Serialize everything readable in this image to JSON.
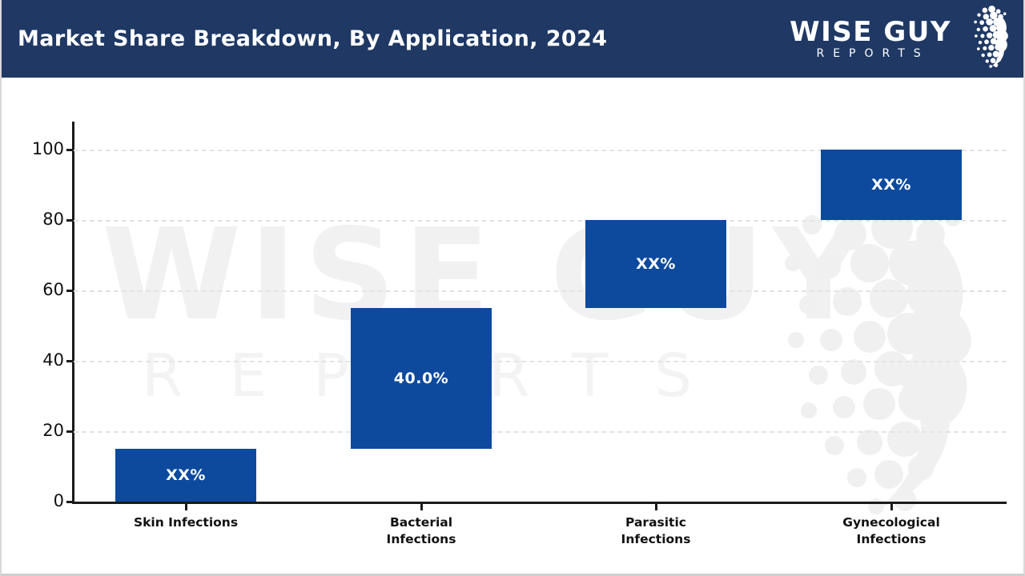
{
  "header": {
    "title": "Market Share Breakdown, By Application, 2024",
    "bg_color": "#1f3864",
    "logo": {
      "line1": "WISE GUY",
      "line2": "REPORTS"
    }
  },
  "watermark": {
    "line1": "WISE GUY",
    "line2": "REPORTS"
  },
  "chart_data": {
    "type": "bar",
    "subtype": "waterfall-floating-bars",
    "title": "Market Share Breakdown, By Application, 2024",
    "xlabel": "",
    "ylabel": "",
    "ylim": [
      0,
      105
    ],
    "yticks": [
      0,
      20,
      40,
      60,
      80,
      100
    ],
    "grid": "horizontal-dashed",
    "legend": "none",
    "bar_color": "#0d4a9e",
    "bar_label_color": "#ffffff",
    "categories": [
      "Skin Infections",
      "Bacterial Infections",
      "Parasitic Infections",
      "Gynecological Infections"
    ],
    "bars": [
      {
        "category": "Skin Infections",
        "category_lines": [
          "Skin Infections"
        ],
        "start": 0,
        "end": 15,
        "label": "XX%"
      },
      {
        "category": "Bacterial Infections",
        "category_lines": [
          "Bacterial",
          "Infections"
        ],
        "start": 15,
        "end": 55,
        "label": "40.0%"
      },
      {
        "category": "Parasitic Infections",
        "category_lines": [
          "Parasitic",
          "Infections"
        ],
        "start": 55,
        "end": 80,
        "label": "XX%"
      },
      {
        "category": "Gynecological Infections",
        "category_lines": [
          "Gynecological",
          "Infections"
        ],
        "start": 80,
        "end": 100,
        "label": "XX%"
      }
    ]
  }
}
